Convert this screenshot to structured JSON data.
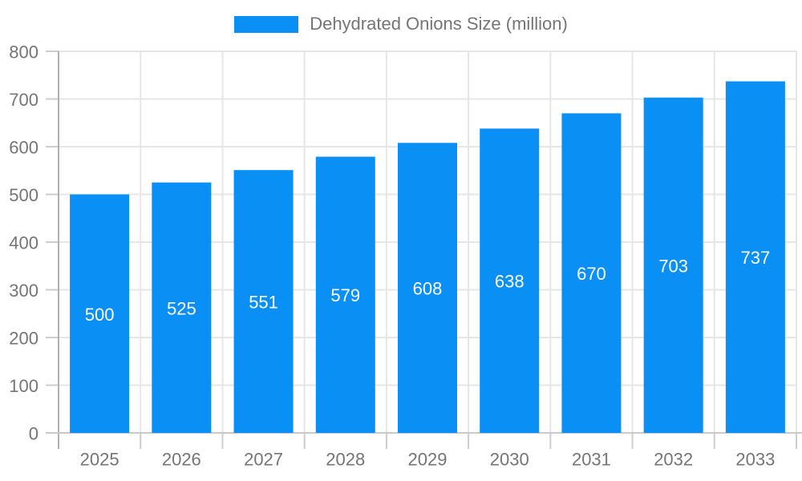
{
  "chart_data": {
    "type": "bar",
    "title": "Dehydrated Onions Size (million)",
    "legend": {
      "label": "Dehydrated Onions Size (million)",
      "position": "top"
    },
    "categories": [
      "2025",
      "2026",
      "2027",
      "2028",
      "2029",
      "2030",
      "2031",
      "2032",
      "2033"
    ],
    "series": [
      {
        "name": "Dehydrated Onions Size (million)",
        "values": [
          500,
          525,
          551,
          579,
          608,
          638,
          670,
          703,
          737
        ]
      }
    ],
    "value_labels_shown": true,
    "xlabel": "",
    "ylabel": "",
    "ylim": [
      0,
      800
    ],
    "ytick_step": 100,
    "yticks": [
      0,
      100,
      200,
      300,
      400,
      500,
      600,
      700,
      800
    ],
    "grid": true,
    "colors": {
      "bar": "#0a8ff5",
      "value_label": "#ffffff",
      "axis_text": "#757575",
      "gridline": "#e6e6e6",
      "tick": "#cdcdcd",
      "y_axis_line": "#b0b0b0",
      "x_axis_line": "#c9c9c9",
      "background": "#ffffff"
    }
  }
}
